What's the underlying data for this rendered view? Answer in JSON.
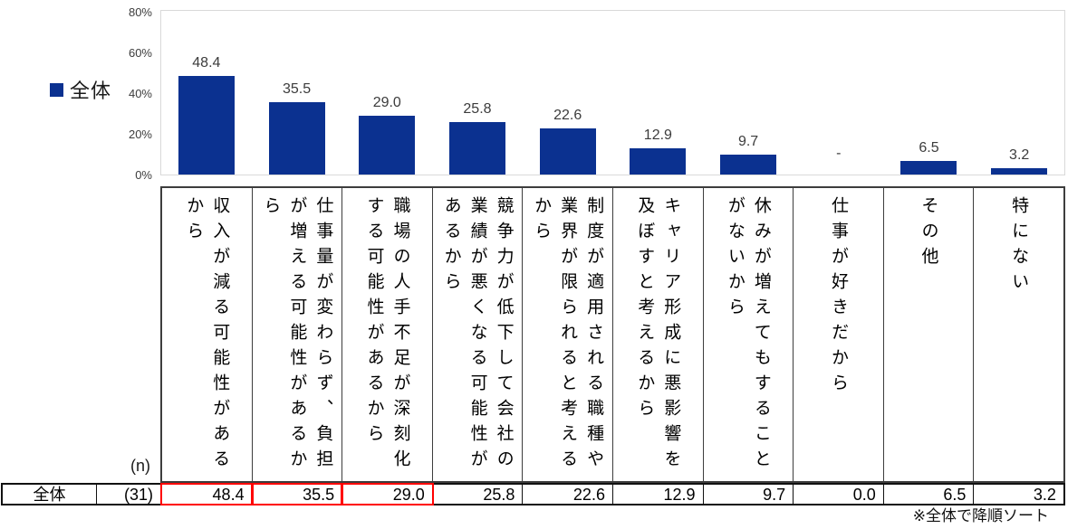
{
  "legend": {
    "label": "全体",
    "color": "#0b3190"
  },
  "y_axis": {
    "ticks_top_down": [
      "80%",
      "60%",
      "40%",
      "20%",
      "0%"
    ]
  },
  "chart_data": {
    "type": "bar",
    "title": "",
    "xlabel": "",
    "ylabel": "",
    "ylim": [
      0,
      80
    ],
    "y_ticks": [
      "0%",
      "20%",
      "40%",
      "60%",
      "80%"
    ],
    "grid": false,
    "legend_position": "left",
    "bar_color": "#0b3190",
    "categories": [
      "収入が減る可能性がある\nから",
      "仕事量が変わらず、負担\nが増える可能性があるか\nら",
      "職場の人手不足が深刻化\nする可能性があるから",
      "競争力が低下して会社の\n業績が悪くなる可能性が\nあるから",
      "制度が適用される職種や\n業界が限られると考える\nから",
      "キャリア形成に悪影響を\n及ぼすと考えるから",
      "休みが増えてもすること\nがないから",
      "仕事が好きだから",
      "その他",
      "特にない"
    ],
    "series": [
      {
        "name": "全体",
        "n": 31,
        "values": [
          48.4,
          35.5,
          29.0,
          25.8,
          22.6,
          12.9,
          9.7,
          0.0,
          6.5,
          3.2
        ]
      }
    ],
    "bar_labels": [
      "48.4",
      "35.5",
      "29.0",
      "25.8",
      "22.6",
      "12.9",
      "9.7",
      "-",
      "6.5",
      "3.2"
    ]
  },
  "n_caption": "(n)",
  "table": {
    "row_header": "全体",
    "n": "(31)",
    "values": [
      "48.4",
      "35.5",
      "29.0",
      "25.8",
      "22.6",
      "12.9",
      "9.7",
      "0.0",
      "6.5",
      "3.2"
    ],
    "highlighted_columns": [
      0,
      1,
      2
    ],
    "highlight_color": "#ff0000"
  },
  "footnote": "※全体で降順ソート"
}
